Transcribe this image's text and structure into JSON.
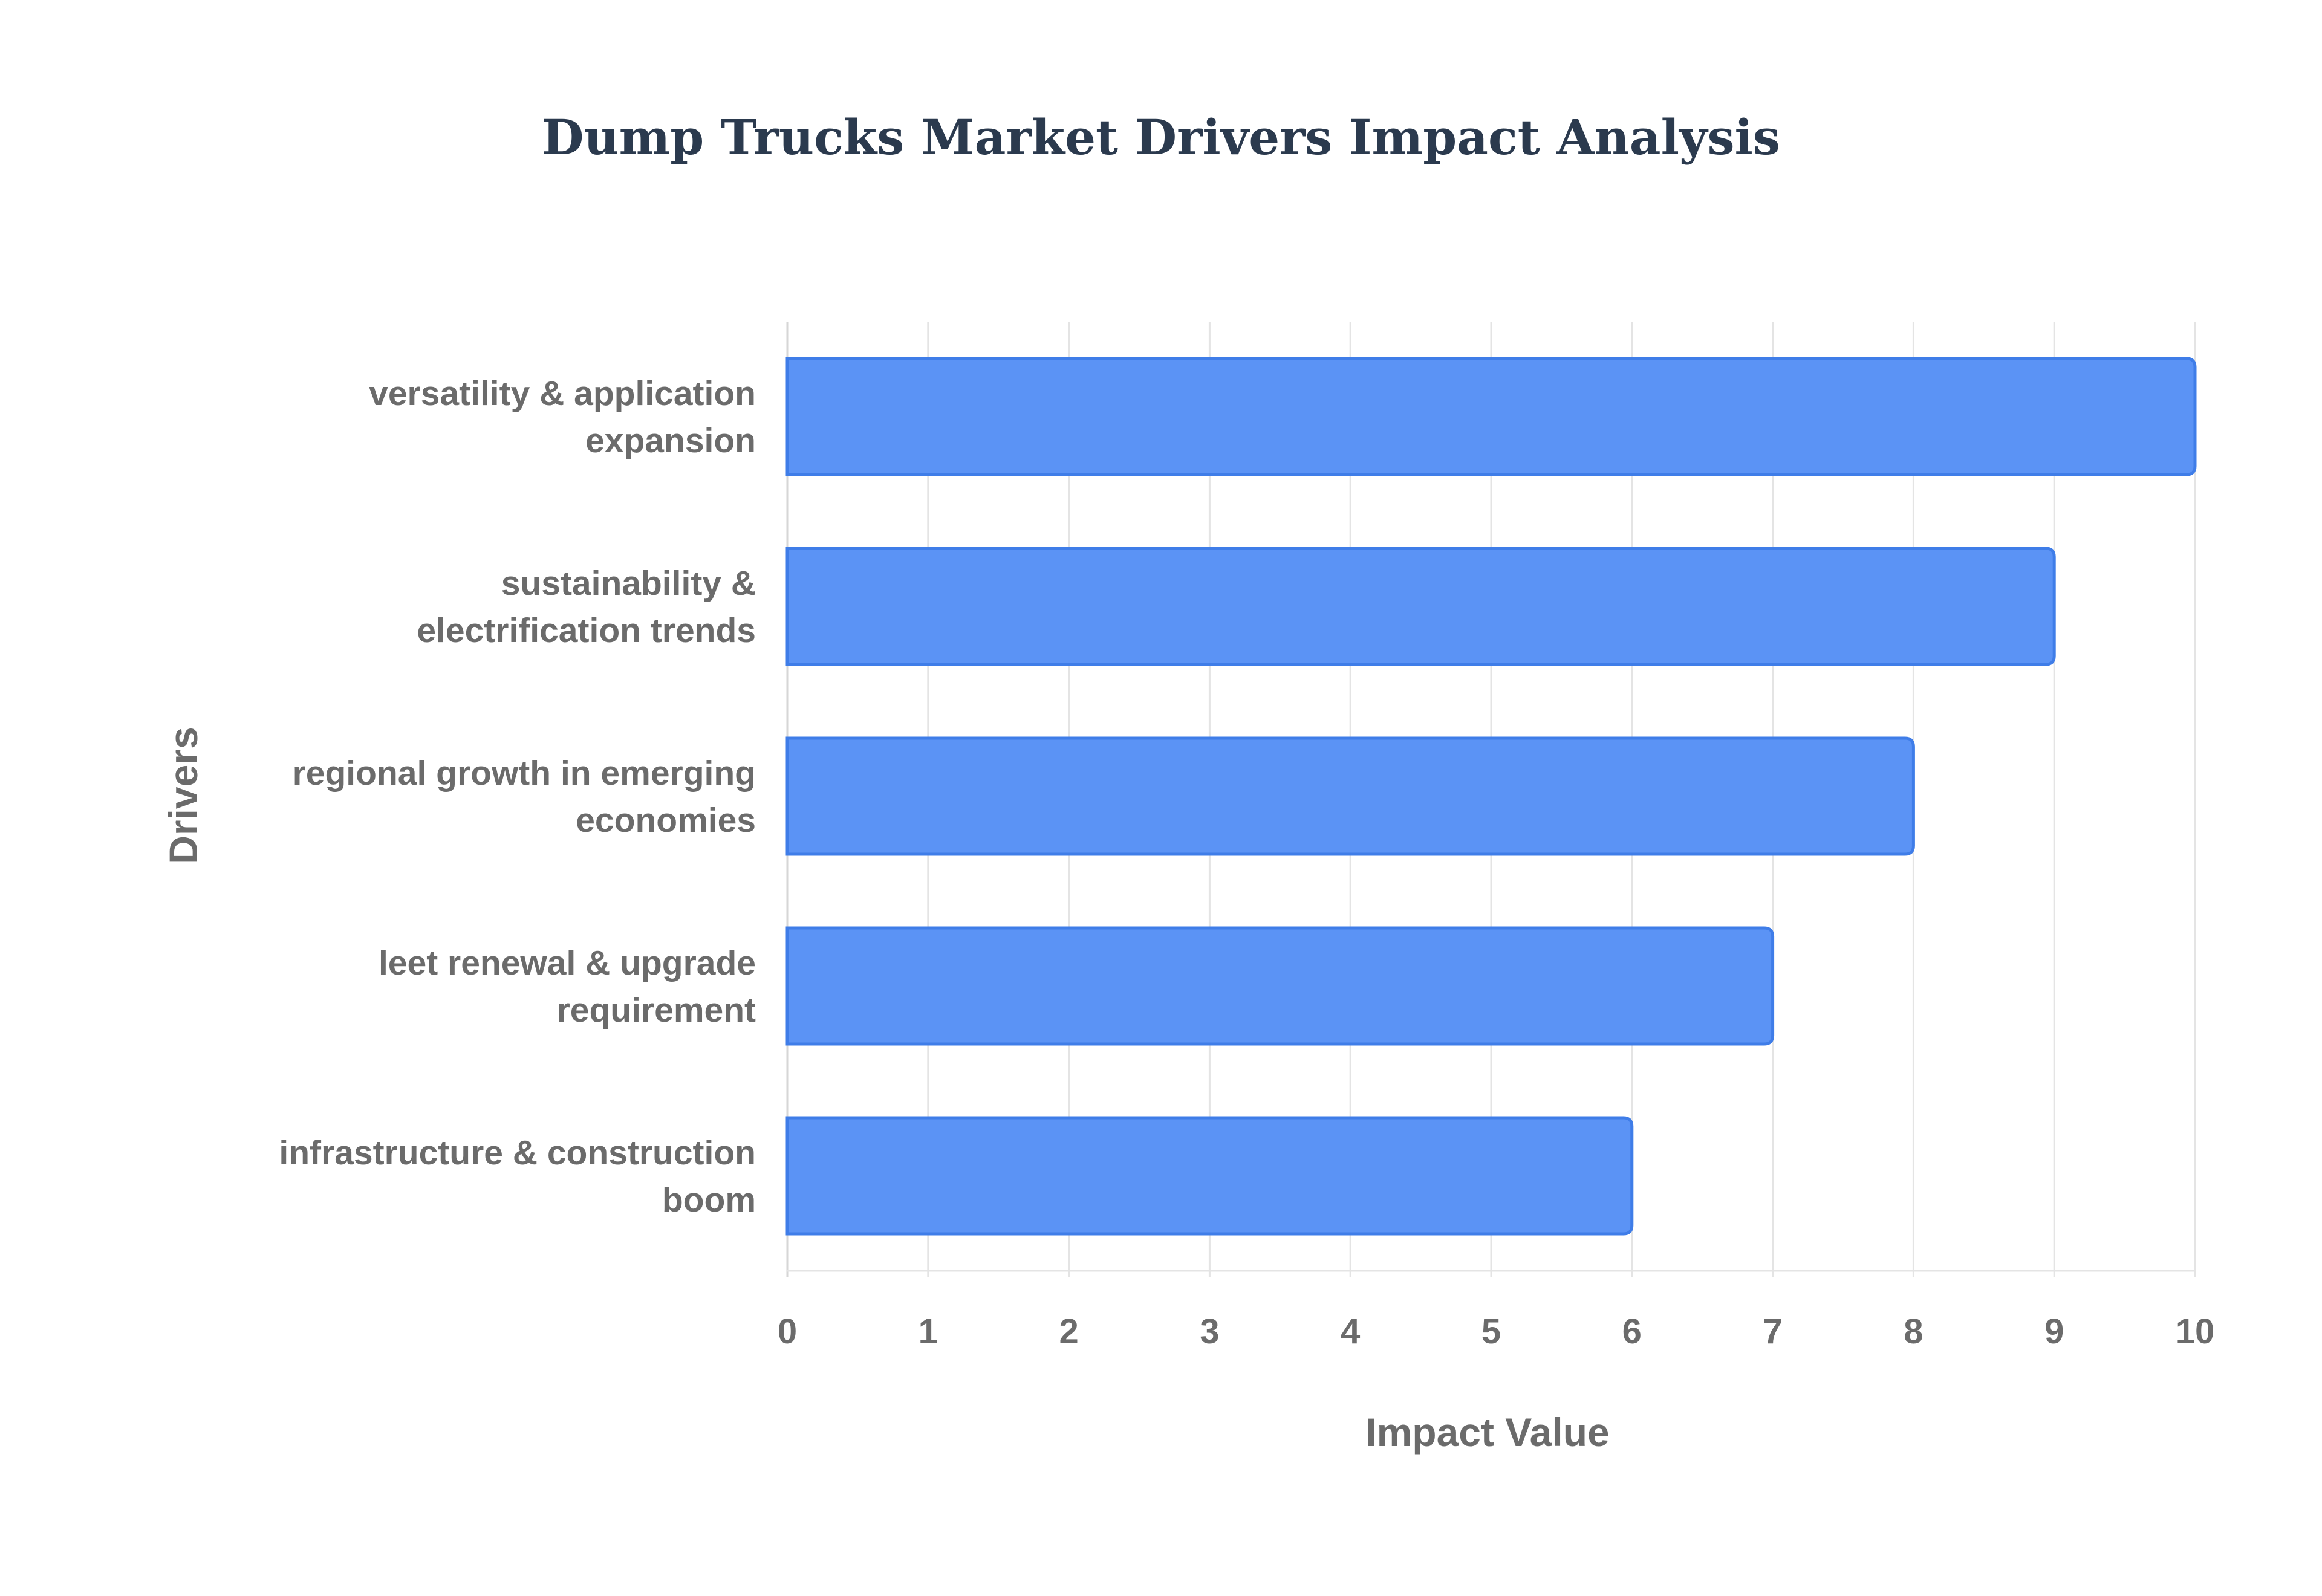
{
  "chart_data": {
    "type": "bar",
    "orientation": "horizontal",
    "title": "Dump Trucks Market Drivers Impact Analysis",
    "xlabel": "Impact Value",
    "ylabel": "Drivers",
    "xlim": [
      0,
      10
    ],
    "x_ticks": [
      "0",
      "1",
      "2",
      "3",
      "4",
      "5",
      "6",
      "7",
      "8",
      "9",
      "10"
    ],
    "categories": [
      [
        "versatility & application",
        "expansion"
      ],
      [
        "sustainability &",
        "electrification trends"
      ],
      [
        "regional growth in emerging",
        "economies"
      ],
      [
        "leet renewal & upgrade",
        "requirement"
      ],
      [
        "infrastructure & construction",
        "boom"
      ]
    ],
    "values": [
      10,
      9,
      8,
      7,
      6
    ],
    "grid": true,
    "legend": "none",
    "colors": {
      "bar_fill": "#5b93f5",
      "bar_stroke": "#3f7de8"
    }
  }
}
